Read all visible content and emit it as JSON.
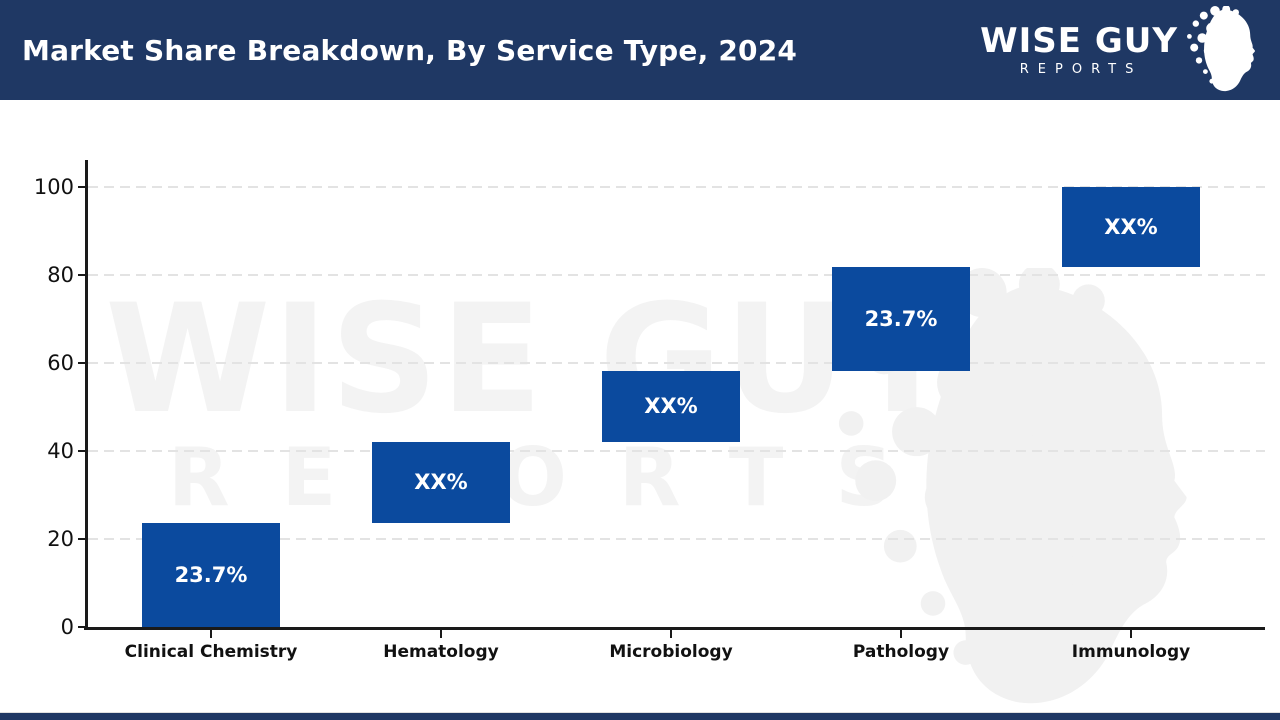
{
  "header": {
    "title": "Market Share Breakdown, By Service Type, 2024",
    "logo": {
      "line1": "WISE GUY",
      "line2": "REPORTS"
    }
  },
  "watermark": {
    "line1": "WISE GUY",
    "line2": "REPORTS"
  },
  "colors": {
    "header_bg": "#1f3864",
    "footer_bg": "#1f3864",
    "bar": "#0b4a9e",
    "bar_label": "#ffffff",
    "gridline": "#e3e3e3",
    "axis": "#1a1a1a",
    "watermark": "#f3f3f3",
    "watermark_face": "#f1f1f1"
  },
  "chart_data": {
    "type": "bar",
    "subtype": "waterfall",
    "title": "Market Share Breakdown, By Service Type, 2024",
    "xlabel": "",
    "ylabel": "",
    "ylim": [
      0,
      100
    ],
    "yticks": [
      0,
      20,
      40,
      60,
      80,
      100
    ],
    "grid": "horizontal dashed, no gridline at 0",
    "legend": "none",
    "categories": [
      "Clinical Chemistry",
      "Hematology",
      "Microbiology",
      "Pathology",
      "Immunology"
    ],
    "segments": [
      {
        "category": "Clinical Chemistry",
        "start": 0,
        "end": 23.7,
        "value": 23.7,
        "label": "23.7%"
      },
      {
        "category": "Hematology",
        "start": 23.7,
        "end": 42.1,
        "value": 18.4,
        "label": "XX%"
      },
      {
        "category": "Microbiology",
        "start": 42.1,
        "end": 58.2,
        "value": 16.1,
        "label": "XX%"
      },
      {
        "category": "Pathology",
        "start": 58.2,
        "end": 81.9,
        "value": 23.7,
        "label": "23.7%"
      },
      {
        "category": "Immunology",
        "start": 81.9,
        "end": 100,
        "value": 18.1,
        "label": "XX%"
      }
    ]
  }
}
